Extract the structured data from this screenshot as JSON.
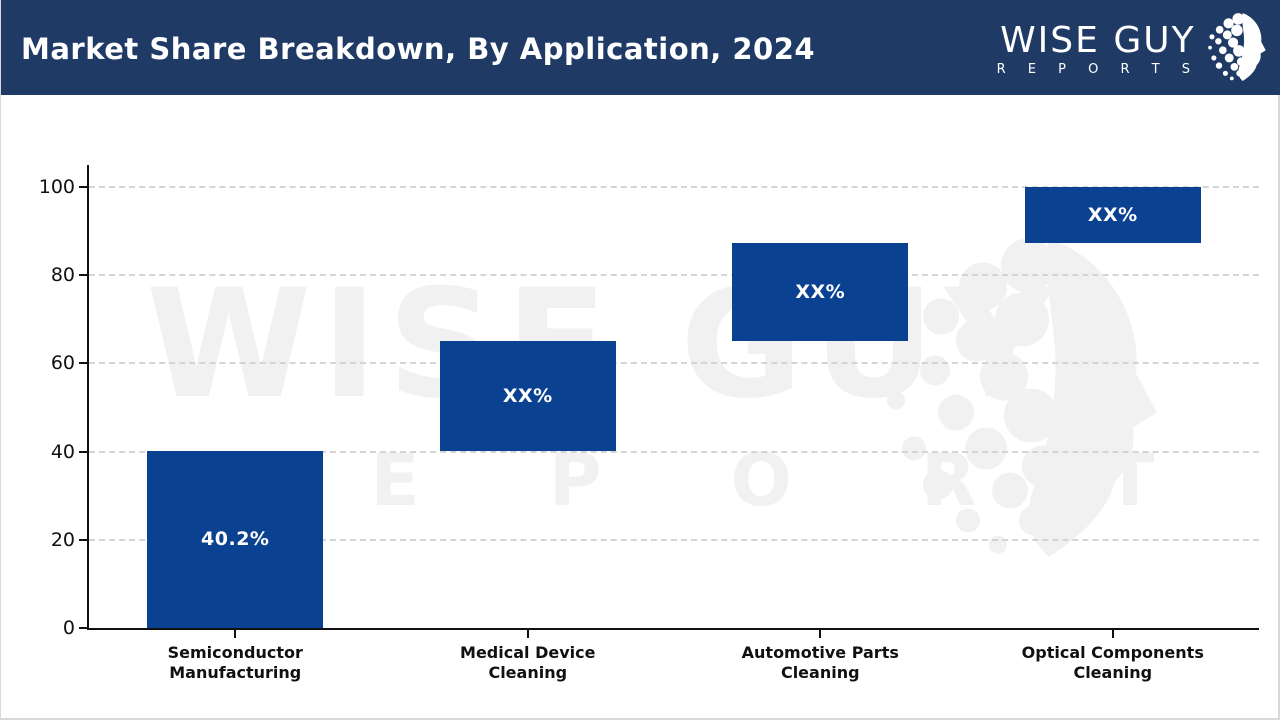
{
  "header": {
    "title": "Market Share Breakdown, By Application, 2024",
    "logo": {
      "line1": "WISE GUY",
      "line2": "R E P O R T S"
    }
  },
  "watermark": {
    "line1": "WISE GUY",
    "line2": "R E P O R T S"
  },
  "colors": {
    "header_bg": "#203a66",
    "bar": "#0b4191",
    "grid": "#d4d4d4",
    "watermark": "#f1f1f1",
    "axis": "#111111",
    "frame_border": "#d9d9d9",
    "bar_label": "#ffffff",
    "title_text": "#ffffff"
  },
  "chart_data": {
    "type": "bar",
    "variant": "waterfall",
    "title": "Market Share Breakdown, By Application, 2024",
    "categories": [
      "Semiconductor Manufacturing",
      "Medical Device Cleaning",
      "Automotive Parts Cleaning",
      "Optical Components Cleaning"
    ],
    "segments": [
      {
        "category": "Semiconductor Manufacturing",
        "start": 0,
        "end": 40.2,
        "label": "40.2%"
      },
      {
        "category": "Medical Device Cleaning",
        "start": 40.2,
        "end": 65,
        "label": "XX%"
      },
      {
        "category": "Automotive Parts Cleaning",
        "start": 65,
        "end": 87.2,
        "label": "XX%"
      },
      {
        "category": "Optical Components Cleaning",
        "start": 87.2,
        "end": 100,
        "label": "XX%"
      }
    ],
    "xlabel": "",
    "ylabel": "",
    "ylim": [
      0,
      100
    ],
    "yticks": [
      0,
      20,
      40,
      60,
      80,
      100
    ],
    "grid": "horizontal-dashed",
    "legend": "none"
  }
}
